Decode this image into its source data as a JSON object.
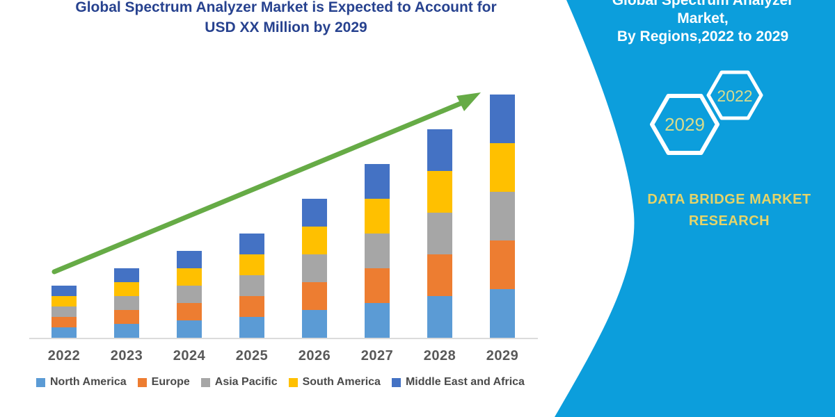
{
  "header": {
    "title_line1": "Global Spectrum Analyzer Market is Expected to Account for",
    "title_line2": "USD XX Million by 2029",
    "title_color": "#27428F"
  },
  "sidebar": {
    "title_line1": "Global Spectrum Analyzer Market,",
    "title_line2": "By Regions,2022 to 2029",
    "hexagon_big_year": "2029",
    "hexagon_small_year": "2022",
    "brand_line1": "DATA BRIDGE MARKET",
    "brand_line2": "RESEARCH",
    "background_color": "#0C9EDC",
    "title_text_color": "#FFFFFF",
    "accent_text_color": "#DBDA7E"
  },
  "chart_data": {
    "type": "bar",
    "stacked": true,
    "title": "Global Spectrum Analyzer Market is Expected to Account for USD XX Million by 2029",
    "xlabel": "",
    "ylabel": "",
    "y_axis_visible": false,
    "gridlines": false,
    "legend_position": "bottom",
    "trend_arrow": true,
    "arrow_color": "#66AB46",
    "axis_line_color": "#DBDBDB",
    "categories": [
      "2022",
      "2023",
      "2024",
      "2025",
      "2026",
      "2027",
      "2028",
      "2029"
    ],
    "series": [
      {
        "name": "North America",
        "color": "#5B9BD5",
        "values": [
          15,
          20,
          25,
          30,
          40,
          50,
          60,
          70
        ]
      },
      {
        "name": "Europe",
        "color": "#ED7D31",
        "values": [
          15,
          20,
          25,
          30,
          40,
          50,
          60,
          70
        ]
      },
      {
        "name": "Asia Pacific",
        "color": "#A6A6A6",
        "values": [
          15,
          20,
          25,
          30,
          40,
          50,
          60,
          70
        ]
      },
      {
        "name": "South America",
        "color": "#FFC000",
        "values": [
          15,
          20,
          25,
          30,
          40,
          50,
          60,
          70
        ]
      },
      {
        "name": "Middle East and Africa",
        "color": "#4472C4",
        "values": [
          15,
          20,
          25,
          30,
          40,
          50,
          60,
          70
        ]
      }
    ]
  }
}
